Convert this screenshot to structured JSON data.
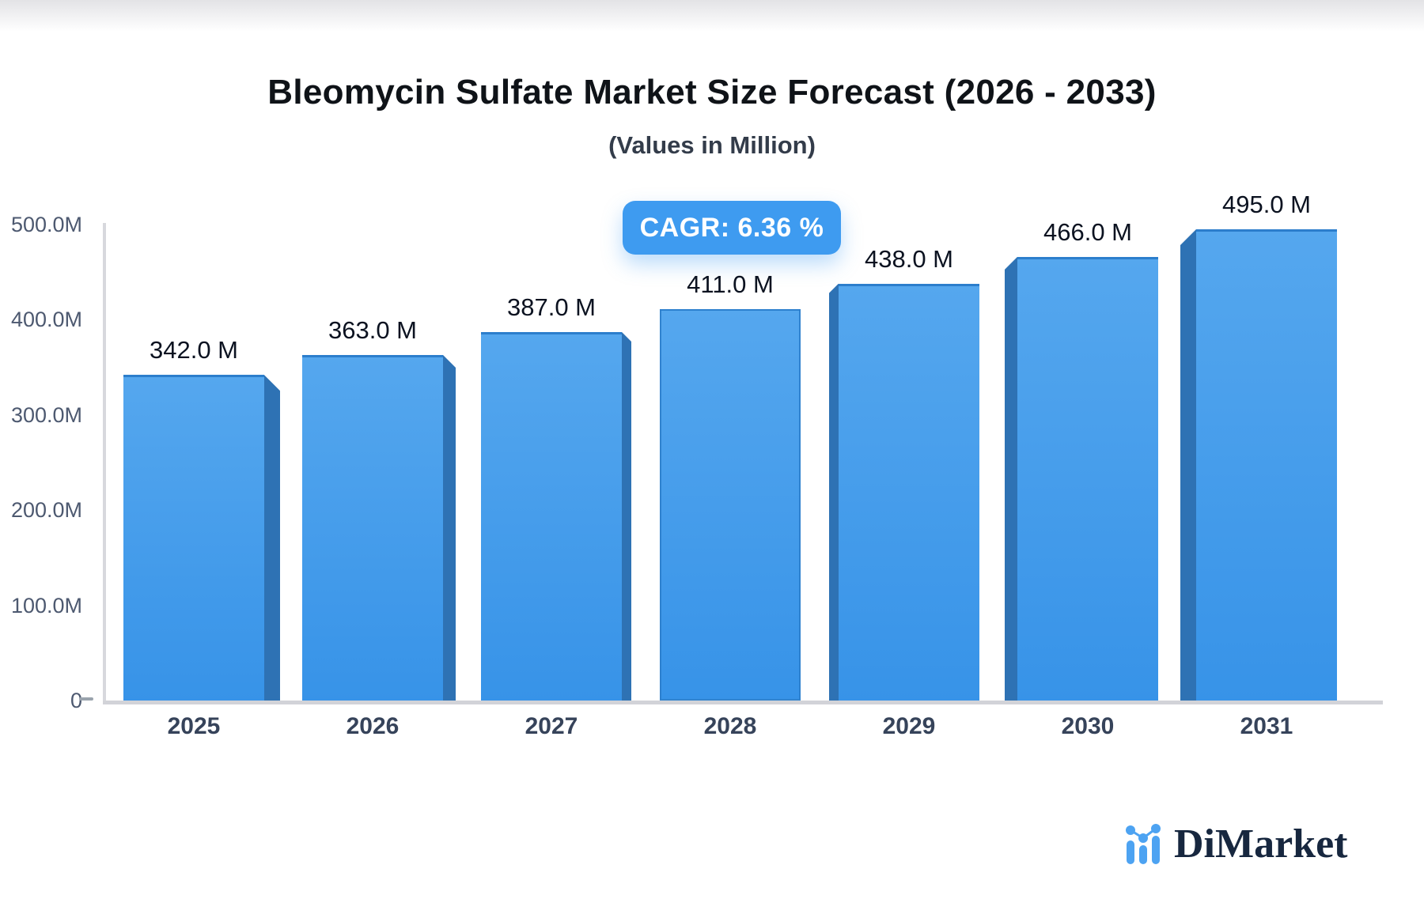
{
  "title": "Bleomycin Sulfate Market Size Forecast (2026 - 2033)",
  "subtitle": "(Values in Million)",
  "cagr": {
    "label": "CAGR: 6.36 %"
  },
  "branding": {
    "logo_text": "DiMarket"
  },
  "colors": {
    "badge_bg": "#3e9bf0",
    "bar_face_top": "#55a7ee",
    "bar_face_bottom": "#3793e8",
    "bar_side": "#2e72b4",
    "bar_edge": "#2b7cc9",
    "axis_line": "#d2d3d8",
    "tick_text": "#4d5970",
    "logo_blue": "#4da3f2",
    "logo_navy": "#17273f"
  },
  "chart_data": {
    "type": "bar",
    "title": "Bleomycin Sulfate Market Size Forecast (2026 - 2033)",
    "subtitle": "(Values in Million)",
    "unit": "Million",
    "categories": [
      "2025",
      "2026",
      "2027",
      "2028",
      "2029",
      "2030",
      "2031"
    ],
    "values": [
      342,
      363,
      387,
      411,
      438,
      466,
      495
    ],
    "value_labels": [
      "342.0 M",
      "363.0 M",
      "387.0 M",
      "411.0 M",
      "438.0 M",
      "466.0 M",
      "495.0 M"
    ],
    "y_ticks": [
      {
        "label": "500.0M",
        "value": 500
      },
      {
        "label": "400.0M",
        "value": 400
      },
      {
        "label": "300.0M",
        "value": 300
      },
      {
        "label": "200.0M",
        "value": 200
      },
      {
        "label": "100.0M",
        "value": 100
      },
      {
        "label": "0",
        "value": 0
      }
    ],
    "ylim": [
      0,
      500
    ],
    "grid": false,
    "legend": false,
    "style": "3d-center-perspective"
  }
}
